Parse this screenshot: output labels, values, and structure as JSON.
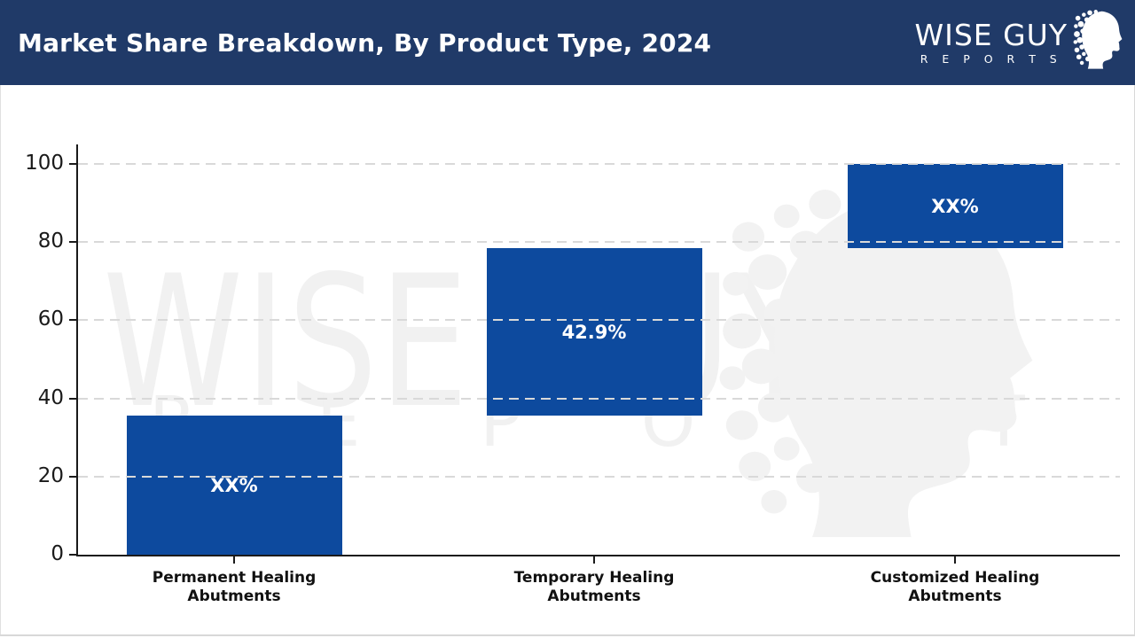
{
  "page": {
    "bg_color": "#ffffff",
    "accent_navy": "#203a68",
    "bar_blue": "#0d4a9e",
    "watermark_color": "#f1f1f1"
  },
  "header": {
    "title": "Market Share Breakdown, By Product Type, 2024",
    "logo_word": "WISE GUY",
    "logo_sub": "R E P O R T S",
    "logo_face_icon": "face-profile-dots-icon"
  },
  "watermark": {
    "word": "WISE GUY",
    "sub": "R E P O R T S",
    "face_icon": "face-profile-dots-icon"
  },
  "chart_data": {
    "type": "bar",
    "variant": "stacked-waterfall",
    "title": "Market Share Breakdown, By Product Type, 2024",
    "categories": [
      "Permanent Healing Abutments",
      "Temporary Healing Abutments",
      "Customized Healing Abutments"
    ],
    "segments": [
      {
        "category": "Permanent Healing Abutments",
        "start": 0,
        "end": 35.5,
        "label": "XX%"
      },
      {
        "category": "Temporary Healing Abutments",
        "start": 35.5,
        "end": 78.4,
        "label": "42.9%"
      },
      {
        "category": "Customized Healing Abutments",
        "start": 78.4,
        "end": 100,
        "label": "XX%"
      }
    ],
    "yticks": [
      0,
      20,
      40,
      60,
      80,
      100
    ],
    "ylim": [
      0,
      105
    ],
    "xlabel": "",
    "ylabel": "",
    "bar_color": "#0d4a9e",
    "bar_label_color": "#ffffff",
    "grid": {
      "horizontal": true,
      "style": "dashed",
      "color": "#d9d9d9",
      "above_bars": true
    },
    "legend": null
  }
}
